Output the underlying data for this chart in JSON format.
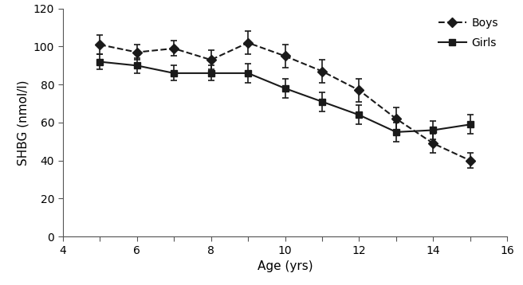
{
  "boys_x": [
    5,
    6,
    7,
    8,
    9,
    10,
    11,
    12,
    13,
    14,
    15
  ],
  "boys_y": [
    101,
    97,
    99,
    93,
    102,
    95,
    87,
    77,
    62,
    49,
    40
  ],
  "boys_yerr": [
    5,
    4,
    4,
    5,
    6,
    6,
    6,
    6,
    6,
    5,
    4
  ],
  "girls_x": [
    5,
    6,
    7,
    8,
    9,
    10,
    11,
    12,
    13,
    14,
    15
  ],
  "girls_y": [
    92,
    90,
    86,
    86,
    86,
    78,
    71,
    64,
    55,
    56,
    59
  ],
  "girls_yerr": [
    4,
    4,
    4,
    4,
    5,
    5,
    5,
    5,
    5,
    5,
    5
  ],
  "xlabel": "Age (yrs)",
  "ylabel": "SHBG (nmol/l)",
  "xlim": [
    4,
    16
  ],
  "ylim": [
    0,
    120
  ],
  "yticks": [
    0,
    20,
    40,
    60,
    80,
    100,
    120
  ],
  "xticks": [
    4,
    5,
    6,
    7,
    8,
    9,
    10,
    11,
    12,
    13,
    14,
    15,
    16
  ],
  "xticklabels": [
    "4",
    "",
    "6",
    "",
    "8",
    "",
    "10",
    "",
    "12",
    "",
    "14",
    "",
    "16"
  ],
  "legend_boys": "Boys",
  "legend_girls": "Girls",
  "line_color": "#1a1a1a",
  "background_color": "#ffffff"
}
